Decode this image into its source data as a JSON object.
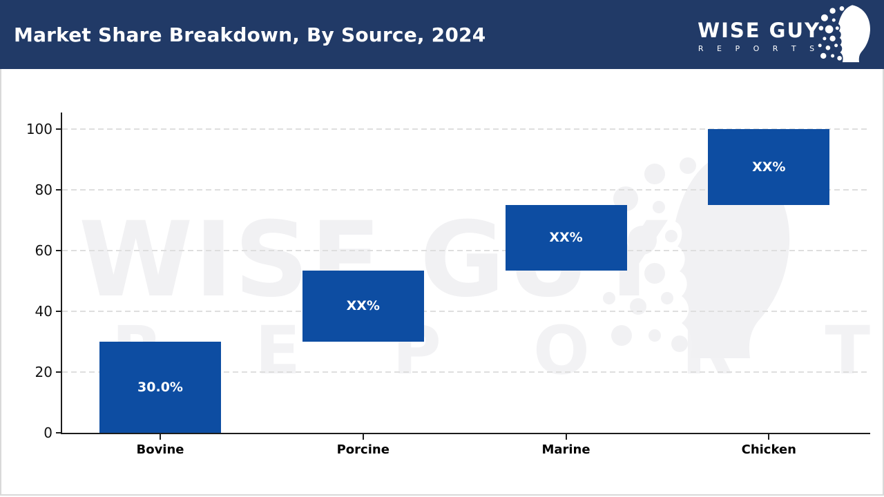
{
  "header": {
    "title": "Market Share Breakdown, By Source, 2024",
    "bg_color": "#213a67",
    "logo": {
      "line1": "WISE GUY",
      "line2": "R E P O R T S"
    }
  },
  "watermark": {
    "line1": "WISE GUY",
    "line2": "R E P O R T S"
  },
  "chart_data": {
    "type": "bar",
    "subtype": "waterfall",
    "title": "Market Share Breakdown, By Source, 2024",
    "categories": [
      "Bovine",
      "Porcine",
      "Marine",
      "Chicken"
    ],
    "segments": [
      {
        "category": "Bovine",
        "start": 0,
        "end": 30,
        "label": "30.0%"
      },
      {
        "category": "Porcine",
        "start": 30,
        "end": 53.5,
        "label": "XX%"
      },
      {
        "category": "Marine",
        "start": 53.5,
        "end": 75,
        "label": "XX%"
      },
      {
        "category": "Chicken",
        "start": 75,
        "end": 100,
        "label": "XX%"
      }
    ],
    "xlabel": "",
    "ylabel": "",
    "ylim": [
      0,
      100
    ],
    "yticks": [
      0,
      20,
      40,
      60,
      80,
      100
    ],
    "grid": "horizontal-dashed",
    "legend": "none",
    "colors": {
      "bar": "#0d4da2",
      "bar_label": "#ffffff",
      "axis": "#1c1c1c",
      "grid": "#dedede",
      "tick_label": "#111111",
      "watermark": "#f1f1f3"
    }
  }
}
